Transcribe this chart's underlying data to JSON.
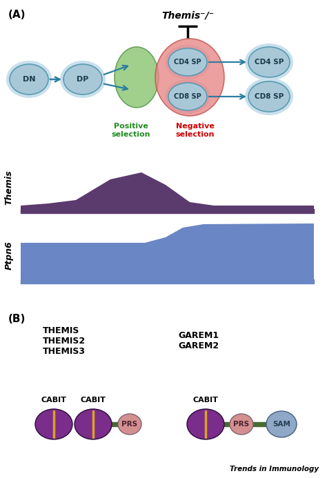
{
  "bg_color": "#ffffff",
  "panel_a_label": "(A)",
  "panel_b_label": "(B)",
  "themis_ko_label": "Themis⁻/⁻",
  "dn_label": "DN",
  "dp_label": "DP",
  "cd4sp_label": "CD4 SP",
  "cd8sp_label": "CD8 SP",
  "pos_sel_label": "Positive\nselection",
  "neg_sel_label": "Negative\nselection",
  "themis_gene_label": "Themis",
  "ptpn6_gene_label": "Ptpn6",
  "themis_color": "#5B3A6E",
  "ptpn6_color": "#6B86C4",
  "cell_fill": "#A8C8D8",
  "cell_edge": "#5A9AB0",
  "cell_outer": "#c8e0ec",
  "green_oval_fill": "#90C878",
  "green_oval_edge": "#5A9850",
  "red_oval_fill": "#E88888",
  "red_oval_edge": "#C05050",
  "arrow_color": "#2B7EA0",
  "pos_sel_color": "#228B22",
  "neg_sel_color": "#CC0000",
  "themis_labels": [
    "THEMIS",
    "THEMIS2",
    "THEMIS3"
  ],
  "garem_labels": [
    "GAREM1",
    "GAREM2"
  ],
  "cabit_color": "#7B2D8B",
  "cabit_stripe": "#DAA520",
  "prs_color": "#D49090",
  "sam_color": "#90A8C8",
  "linker_color": "#4A6A30",
  "trends_text": "Trends in Immunology",
  "fig_w": 4.74,
  "fig_h": 6.93,
  "dpi": 100
}
